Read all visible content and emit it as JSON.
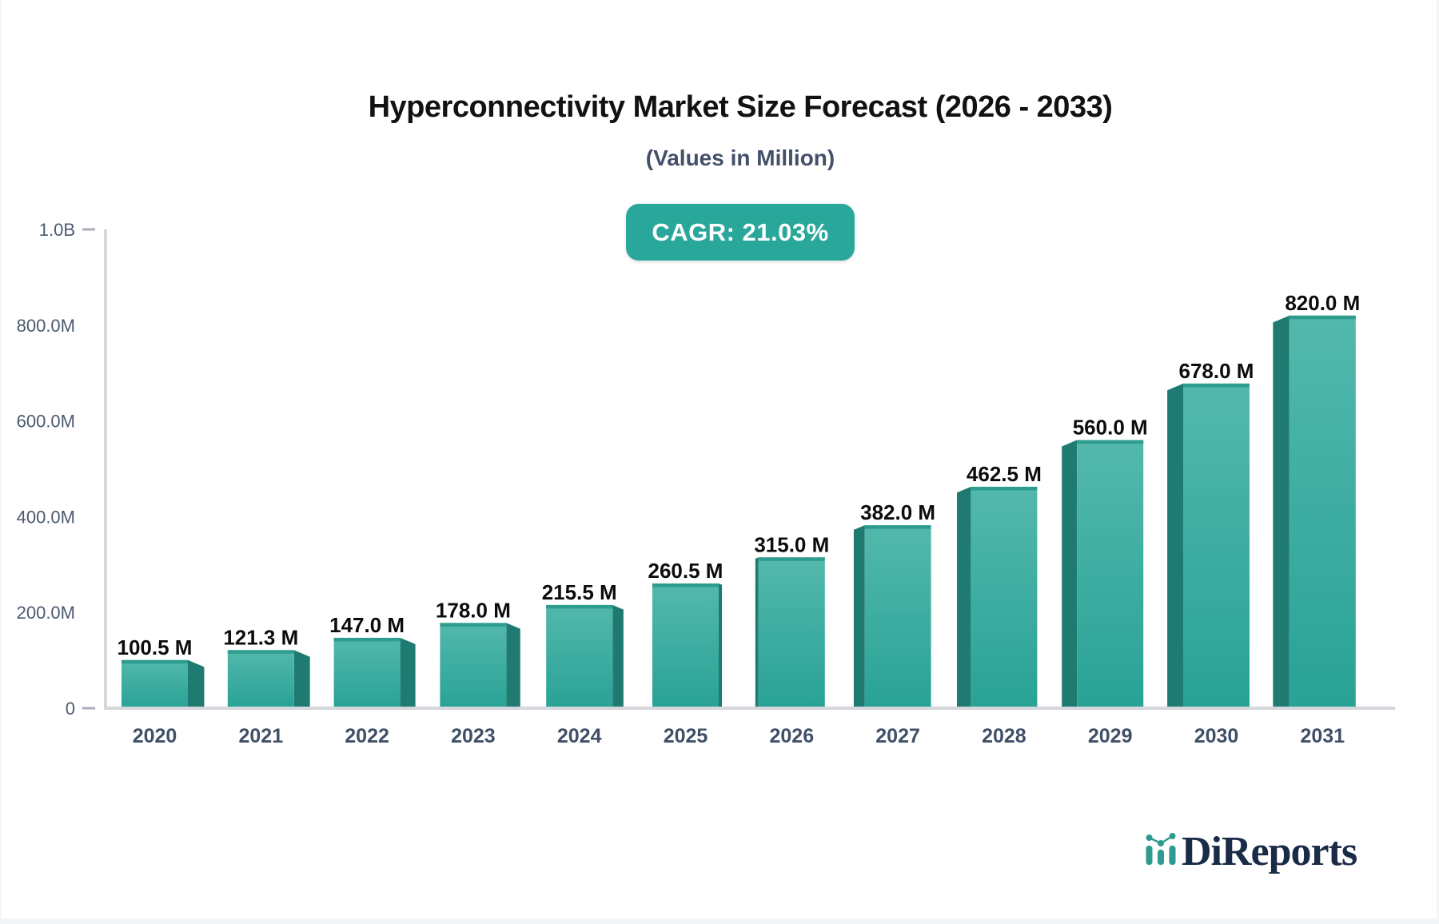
{
  "page": {
    "frame_background": "#f3f5f7",
    "card_background": "#ffffff"
  },
  "header": {
    "title": "Hyperconnectivity Market Size Forecast (2026 - 2033)",
    "subtitle": "(Values in Million)",
    "cagr_badge": "CAGR: 21.03%"
  },
  "branding": {
    "logo_text": "DiReports",
    "logo_icon": "mini-bar-chart-icon",
    "logo_text_color": "#1a2b47",
    "logo_icon_color": "#2d9b90"
  },
  "chart_data": {
    "type": "bar",
    "title": "Hyperconnectivity Market Size Forecast (2026 - 2033)",
    "subtitle": "(Values in Million)",
    "unit": "Million",
    "categories": [
      "2020",
      "2021",
      "2022",
      "2023",
      "2024",
      "2025",
      "2026",
      "2027",
      "2028",
      "2029",
      "2030",
      "2031"
    ],
    "values": [
      100.5,
      121.3,
      147.0,
      178.0,
      215.5,
      260.5,
      315.0,
      382.0,
      462.5,
      560.0,
      678.0,
      820.0
    ],
    "value_labels": [
      "100.5 M",
      "121.3 M",
      "147.0 M",
      "178.0 M",
      "215.5 M",
      "260.5 M",
      "315.0 M",
      "382.0 M",
      "462.5 M",
      "560.0 M",
      "678.0 M",
      "820.0 M"
    ],
    "y_axis": {
      "range": [
        0,
        1000
      ],
      "ticks": [
        {
          "value": 0,
          "label": "0"
        },
        {
          "value": 200,
          "label": "200.0M"
        },
        {
          "value": 400,
          "label": "400.0M"
        },
        {
          "value": 600,
          "label": "600.0M"
        },
        {
          "value": 800,
          "label": "800.0M"
        },
        {
          "value": 1000,
          "label": "1.0B"
        }
      ]
    },
    "grid": false,
    "legend": null,
    "annotations": [
      {
        "type": "badge",
        "text": "CAGR: 21.03%",
        "position": "top-center"
      }
    ],
    "colors": {
      "bar_top": "#53b8ac",
      "bar_bottom": "#29a296",
      "bar_side": "#1f7b71",
      "bar_cap": "#2e9c8f",
      "badge_bg": "#2aa79b",
      "axis_line": "#d4d7db",
      "tick_dash": "#a8aeb6",
      "value_label": "#0b0c0d",
      "year_label": "#3f5066",
      "ytick_label": "#4b5a6e"
    }
  }
}
